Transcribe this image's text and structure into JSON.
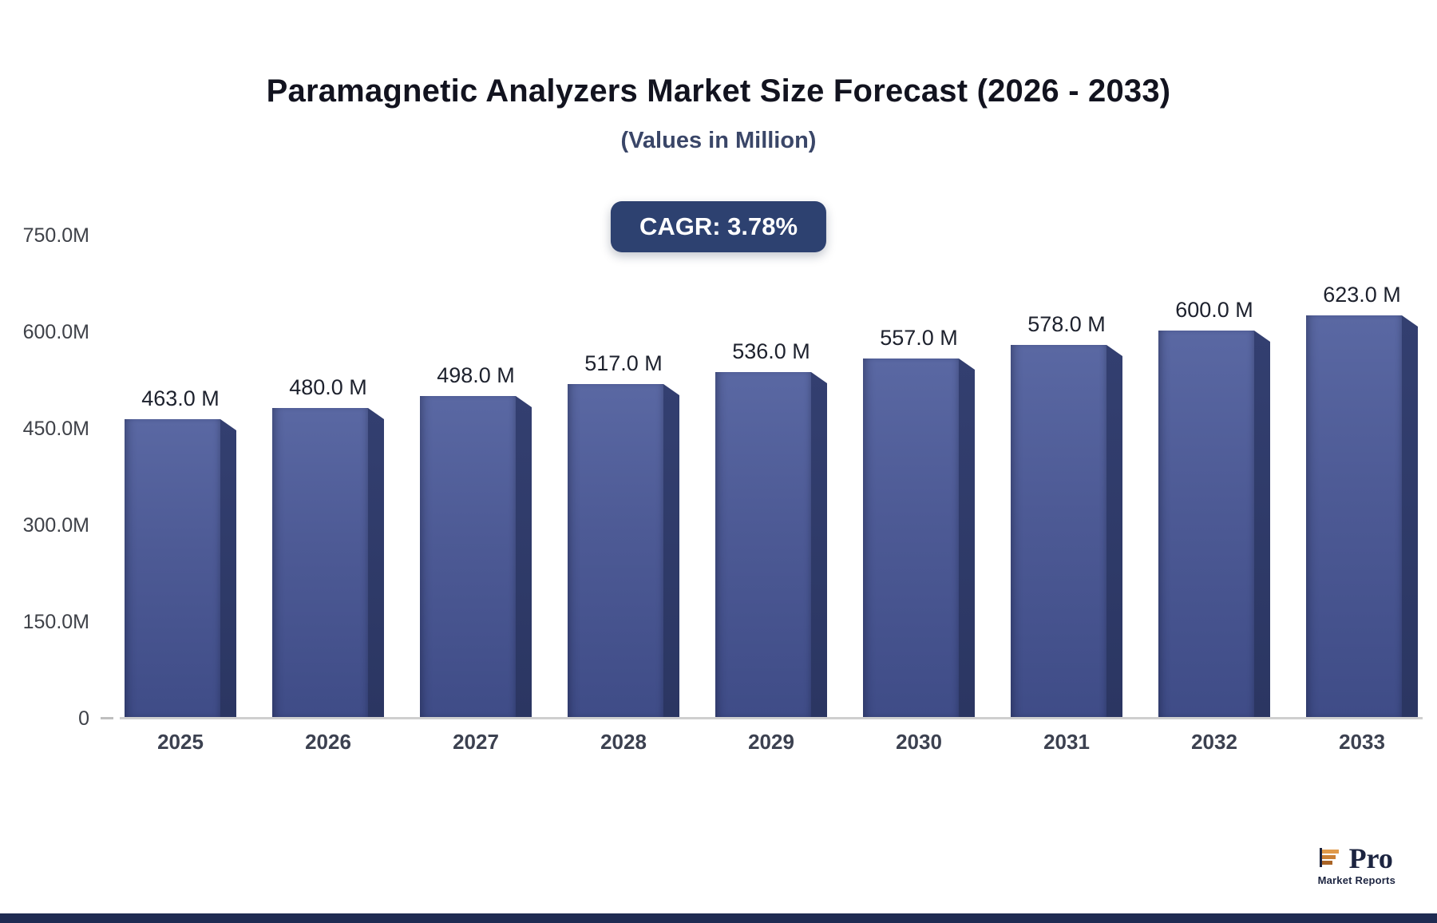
{
  "title": "Paramagnetic Analyzers Market Size Forecast (2026 - 2033)",
  "subtitle": "(Values in Million)",
  "cagr_label": "CAGR: 3.78%",
  "logo": {
    "name": "Pro",
    "sub": "Market Reports"
  },
  "colors": {
    "bar_top": "#5a68a3",
    "bar_bottom": "#3f4c87",
    "bar_side": "#2b3662",
    "badge_bg": "#2d4170",
    "footer_strip": "#1f2b52",
    "logo_orange": "#d98a3a"
  },
  "chart_data": {
    "type": "bar",
    "title": "Paramagnetic Analyzers Market Size Forecast (2026 - 2033)",
    "subtitle": "(Values in Million)",
    "cagr": "3.78%",
    "categories": [
      "2025",
      "2026",
      "2027",
      "2028",
      "2029",
      "2030",
      "2031",
      "2032",
      "2033"
    ],
    "values": [
      463,
      480,
      498,
      517,
      536,
      557,
      578,
      600,
      623
    ],
    "value_labels": [
      "463.0 M",
      "480.0 M",
      "498.0 M",
      "517.0 M",
      "536.0 M",
      "557.0 M",
      "578.0 M",
      "600.0 M",
      "623.0 M"
    ],
    "xlabel": "",
    "ylabel": "",
    "ylim": [
      0,
      750
    ],
    "yticks": [
      {
        "value": 750,
        "label": "750.0M"
      },
      {
        "value": 600,
        "label": "600.0M"
      },
      {
        "value": 450,
        "label": "450.0M"
      },
      {
        "value": 300,
        "label": "300.0M"
      },
      {
        "value": 150,
        "label": "150.0M"
      },
      {
        "value": 0,
        "label": "0"
      }
    ],
    "grid": false,
    "legend": false
  }
}
